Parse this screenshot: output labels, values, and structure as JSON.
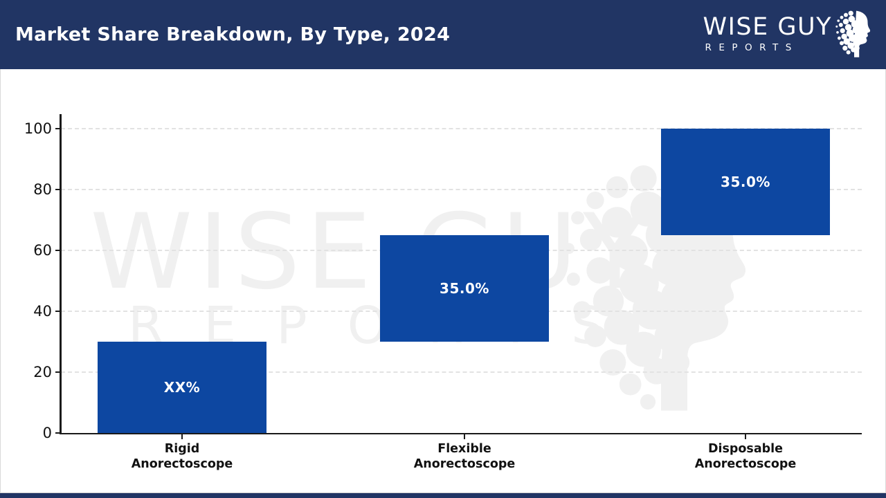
{
  "header": {
    "title": "Market Share Breakdown, By Type, 2024"
  },
  "logo": {
    "line1": "WISE GUY",
    "line2": "REPORTS"
  },
  "watermark": {
    "line1": "WISE GUY",
    "line2": "REPORTS"
  },
  "colors": {
    "header_navy": "#213564",
    "bar_blue": "#0D47A1",
    "gridline_gray": "#e2e2e2",
    "watermark_gray": "#f0f0f0",
    "axis_black": "#1a1a1a"
  },
  "chart_data": {
    "type": "bar",
    "variant": "floating-waterfall",
    "title": "Market Share Breakdown, By Type, 2024",
    "categories": [
      [
        "Rigid",
        "Anorectoscope"
      ],
      [
        "Flexible",
        "Anorectoscope"
      ],
      [
        "Disposable",
        "Anorectoscope"
      ]
    ],
    "bars": [
      {
        "start": 0,
        "end": 30,
        "value_label": "XX%"
      },
      {
        "start": 30,
        "end": 65,
        "value_label": "35.0%"
      },
      {
        "start": 65,
        "end": 100,
        "value_label": "35.0%"
      }
    ],
    "yticks": [
      0,
      20,
      40,
      60,
      80,
      100
    ],
    "ylim": [
      0,
      105
    ],
    "xlabel": "",
    "ylabel": "",
    "grid": "horizontal-dashed",
    "legend": "none",
    "bar_color": "#0D47A1",
    "bar_label_color": "#ffffff"
  }
}
